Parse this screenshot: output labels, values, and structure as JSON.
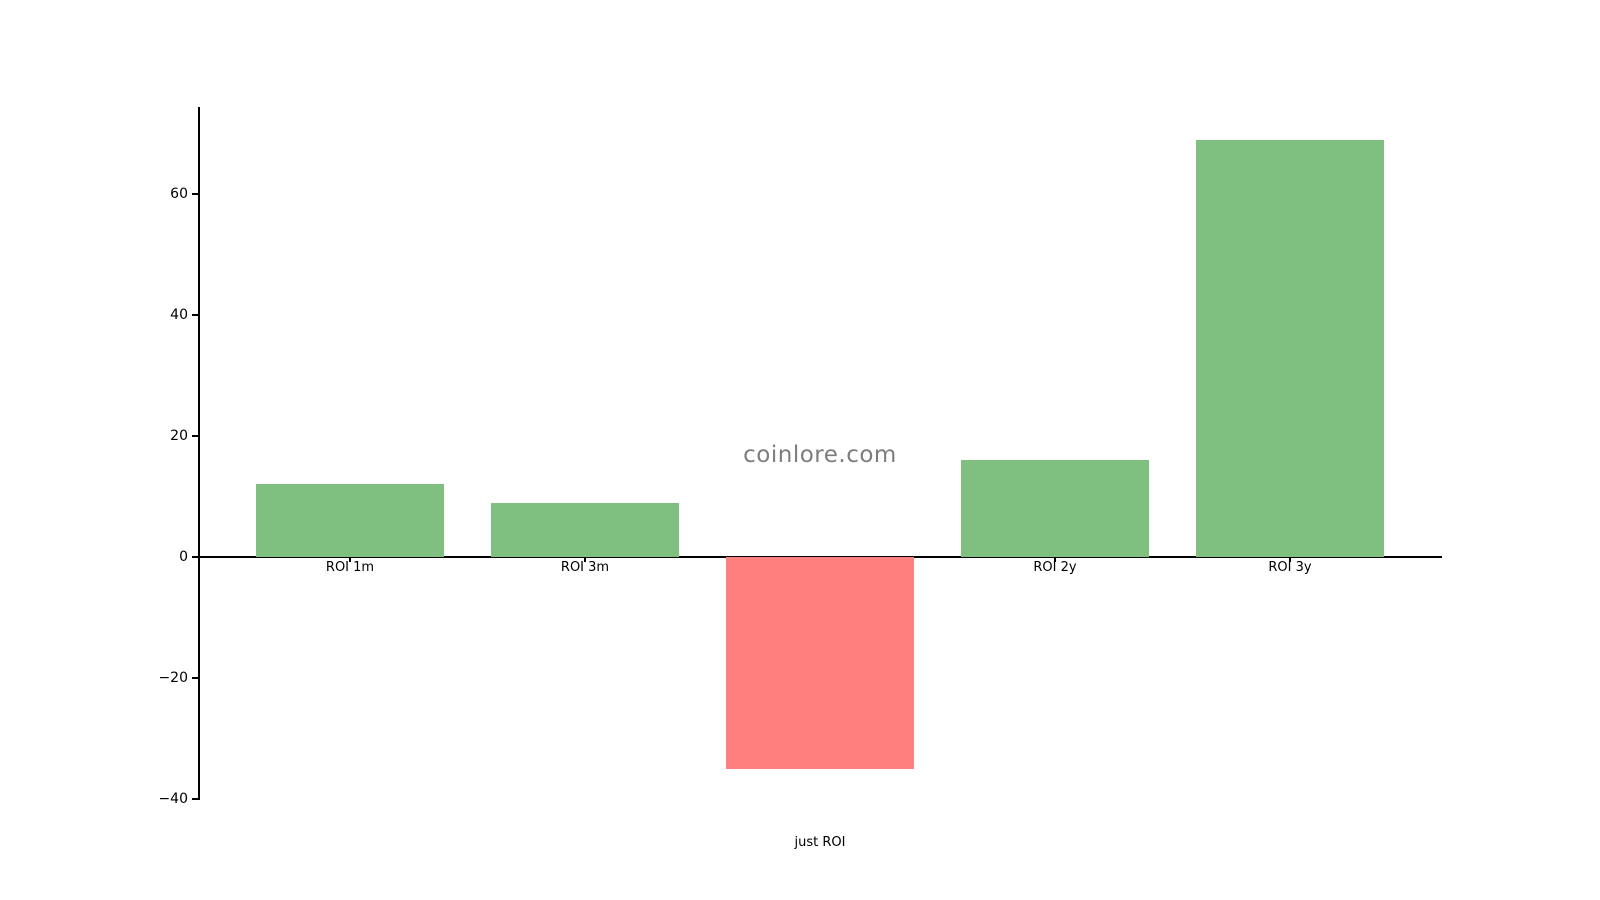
{
  "watermark": {
    "text": "coinlore.com",
    "color": "#7d7d7d"
  },
  "chart_data": {
    "type": "bar",
    "title": "",
    "xlabel": "",
    "ylabel": "",
    "categories": [
      "ROI 1m",
      "ROI 3m",
      "just ROI",
      "ROI 2y",
      "ROI 3y"
    ],
    "values": [
      12,
      9,
      -35,
      16,
      69
    ],
    "ylim": [
      -40.2,
      74.4
    ],
    "xlim": [
      -0.64,
      4.64
    ],
    "ytick_values": [
      60,
      40,
      20,
      0,
      -20,
      -40
    ],
    "ytick_labels": [
      "60",
      "40",
      "20",
      "0",
      "−20",
      "−40"
    ],
    "grid": false,
    "legend": false,
    "colors": {
      "positive_bar": "#7fbf7f",
      "negative_bar": "#ff7f7f",
      "axis": "#000000",
      "tick_label": "#000000"
    }
  }
}
